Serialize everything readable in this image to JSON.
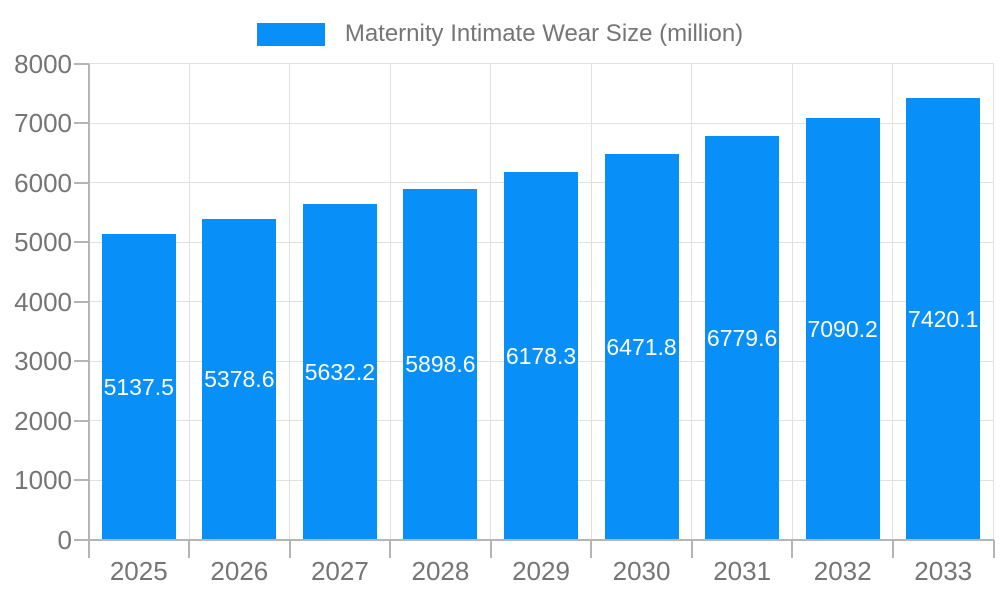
{
  "chart_data": {
    "type": "bar",
    "categories": [
      "2025",
      "2026",
      "2027",
      "2028",
      "2029",
      "2030",
      "2031",
      "2032",
      "2033"
    ],
    "series": [
      {
        "name": "Maternity Intimate Wear Size (million)",
        "values": [
          5137.5,
          5378.6,
          5632.2,
          5898.6,
          6178.3,
          6471.8,
          6779.6,
          7090.2,
          7420.1
        ]
      }
    ],
    "value_labels": [
      "5137.5",
      "5378.6",
      "5632.2",
      "5898.6",
      "6178.3",
      "6471.8",
      "6779.6",
      "7090.2",
      "7420.1"
    ],
    "xlabel": "",
    "ylabel": "",
    "ylim": [
      0,
      8000
    ],
    "yticks": [
      0,
      1000,
      2000,
      3000,
      4000,
      5000,
      6000,
      7000,
      8000
    ],
    "grid": true,
    "legend_position": "top-center",
    "value_label_position": "inside-center"
  },
  "colors": {
    "bar": "#088ff8",
    "axis_text": "#757575",
    "legend_text": "#757575",
    "value_label_text": "#ffffff",
    "grid_line": "#e0e0e0",
    "axis_line": "#b5b5b5",
    "background": "#ffffff"
  }
}
